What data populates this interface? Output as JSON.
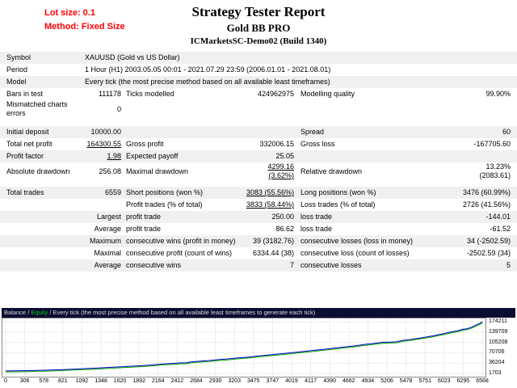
{
  "annotation": {
    "line1": "Lot size: 0.1",
    "line2": "Method: Fixed Size",
    "color": "#ff0000"
  },
  "header": {
    "title": "Strategy Tester Report",
    "subtitle": "Gold BB PRO",
    "server": "ICMarketsSC-Demo02 (Build 1340)"
  },
  "table": {
    "rows": [
      {
        "c1l": "Symbol",
        "span": "XAUUSD (Gold vs US Dollar)"
      },
      {
        "c1l": "Period",
        "span": "1 Hour (H1) 2003.05.05 00:01 - 2021.07.29 23:59 (2006.01.01 - 2021.08.01)"
      },
      {
        "c1l": "Model",
        "span": "Every tick (the most precise method based on all available least timeframes)"
      },
      {
        "c1l": "Bars in test",
        "c1v": "111178",
        "c2l": "Ticks modelled",
        "c2v": "424962975",
        "c3l": "Modelling quality",
        "c3v": "99.90%"
      },
      {
        "c1l": "Mismatched charts errors",
        "c1v": "0"
      },
      {
        "c1l": "Initial deposit",
        "c1v": "10000.00",
        "c3l": "Spread",
        "c3v": "60"
      },
      {
        "c1l": "Total net profit",
        "c1v": "164300.55",
        "c2l": "Gross profit",
        "c2v": "332006.15",
        "c3l": "Gross loss",
        "c3v": "-167705.60"
      },
      {
        "c1l": "Profit factor",
        "c1v": "1.98",
        "c2l": "Expected payoff",
        "c2v": "25.05"
      },
      {
        "c1l": "Absolute drawdown",
        "c1v": "256.08",
        "c2l": "Maximal drawdown",
        "c2v": "4299.16\n(3.62%)",
        "c3l": "Relative drawdown",
        "c3v": "13.23%\n(2083.61)"
      },
      {
        "c1l": "Total trades",
        "c1v": "6559",
        "c2l": "Short positions (won %)",
        "c2v": "3083 (55.56%)",
        "c3l": "Long positions (won %)",
        "c3v": "3476 (60.99%)"
      },
      {
        "c2l": "Profit trades (% of total)",
        "c2v": "3833 (58.44%)",
        "c3l": "Loss trades (% of total)",
        "c3v": "2726 (41.56%)"
      },
      {
        "c1v": "Largest",
        "c2l": "profit trade",
        "c2v": "250.00",
        "c3l": "loss trade",
        "c3v": "-144.01"
      },
      {
        "c1v": "Average",
        "c2l": "profit trade",
        "c2v": "86.62",
        "c3l": "loss trade",
        "c3v": "-61.52"
      },
      {
        "c1v": "Maximum",
        "c2l": "consecutive wins (profit in money)",
        "c2v": "39 (3182.76)",
        "c3l": "consecutive losses (loss in money)",
        "c3v": "34 (-2502.59)"
      },
      {
        "c1v": "Maximal",
        "c2l": "consecutive profit (count of wins)",
        "c2v": "6334.44 (38)",
        "c3l": "consecutive loss (count of losses)",
        "c3v": "-2502.59 (34)"
      },
      {
        "c1v": "Average",
        "c2l": "consecutive wins",
        "c2v": "7",
        "c3l": "consecutive losses",
        "c3v": "5"
      }
    ]
  },
  "chart_data": {
    "type": "line",
    "title": "Balance / Equity curve",
    "legend": [
      "Balance",
      "Equity"
    ],
    "sep": " / ",
    "header_text": "Every tick (the most precise method based on all available least timeframes to generate each tick)",
    "x_ticks": [
      "0",
      "306",
      "578",
      "821",
      "1092",
      "1348",
      "1620",
      "1892",
      "2164",
      "2412",
      "2684",
      "2930",
      "3203",
      "3475",
      "3747",
      "4019",
      "4117",
      "4390",
      "4662",
      "4934",
      "5206",
      "5478",
      "5751",
      "6023",
      "6295",
      "6568"
    ],
    "y_ticks": [
      174211,
      139709,
      105208,
      70706,
      36204,
      1703
    ],
    "xlim": [
      0,
      6568
    ],
    "ylim": [
      1703,
      174211
    ],
    "balance_color": "#0000c8",
    "equity_color": "#00a800",
    "grid": true,
    "points": [
      [
        0,
        10000
      ],
      [
        120,
        10400
      ],
      [
        306,
        11200
      ],
      [
        420,
        11900
      ],
      [
        578,
        12800
      ],
      [
        700,
        13900
      ],
      [
        821,
        15000
      ],
      [
        950,
        16300
      ],
      [
        1092,
        17800
      ],
      [
        1220,
        19200
      ],
      [
        1348,
        20800
      ],
      [
        1480,
        22400
      ],
      [
        1620,
        24300
      ],
      [
        1760,
        26200
      ],
      [
        1892,
        28200
      ],
      [
        2030,
        30300
      ],
      [
        2164,
        33200
      ],
      [
        2300,
        35100
      ],
      [
        2412,
        36900
      ],
      [
        2480,
        37000
      ],
      [
        2560,
        40400
      ],
      [
        2684,
        42800
      ],
      [
        2810,
        44900
      ],
      [
        2930,
        47800
      ],
      [
        3060,
        50300
      ],
      [
        3203,
        53800
      ],
      [
        3350,
        56400
      ],
      [
        3475,
        59800
      ],
      [
        3610,
        62800
      ],
      [
        3747,
        66300
      ],
      [
        3880,
        69300
      ],
      [
        4019,
        72800
      ],
      [
        4117,
        75300
      ],
      [
        4250,
        78800
      ],
      [
        4390,
        82300
      ],
      [
        4520,
        85800
      ],
      [
        4662,
        89800
      ],
      [
        4800,
        93300
      ],
      [
        4934,
        97800
      ],
      [
        5060,
        101300
      ],
      [
        5206,
        105800
      ],
      [
        5290,
        106300
      ],
      [
        5380,
        107000
      ],
      [
        5478,
        112300
      ],
      [
        5600,
        115800
      ],
      [
        5751,
        121300
      ],
      [
        5880,
        126800
      ],
      [
        6023,
        133800
      ],
      [
        6150,
        140800
      ],
      [
        6230,
        144000
      ],
      [
        6295,
        148800
      ],
      [
        6360,
        151000
      ],
      [
        6420,
        156000
      ],
      [
        6480,
        163000
      ],
      [
        6530,
        168000
      ],
      [
        6568,
        174300
      ]
    ]
  }
}
